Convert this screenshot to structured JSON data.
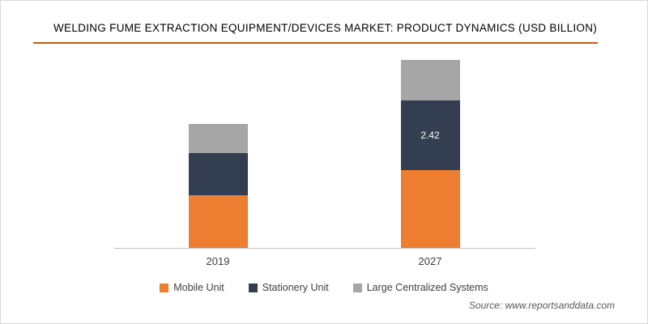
{
  "source": "Source: www.reportsanddata.com",
  "chart_data": {
    "type": "bar",
    "stacked": true,
    "title": "WELDING FUME EXTRACTION EQUIPMENT/DEVICES MARKET: PRODUCT DYNAMICS (USD BILLION)",
    "value_unit": "USD Billion",
    "categories": [
      "2019",
      "2027"
    ],
    "series": [
      {
        "name": "Mobile Unit",
        "color": "#ED7D31",
        "values": [
          1.83,
          2.7
        ]
      },
      {
        "name": "Stationery Unit",
        "color": "#333F50",
        "values": [
          1.46,
          2.42
        ]
      },
      {
        "name": "Large Centralized Systems",
        "color": "#A6A6A6",
        "values": [
          1.0,
          1.4
        ]
      }
    ],
    "data_labels": [
      {
        "category": "2027",
        "series": "Stationery Unit",
        "text": "2.42",
        "color": "#FFFFFF"
      }
    ],
    "legend_position": "bottom",
    "grid": false,
    "y_axis_visible": false,
    "ylim": [
      0,
      6.6
    ]
  }
}
